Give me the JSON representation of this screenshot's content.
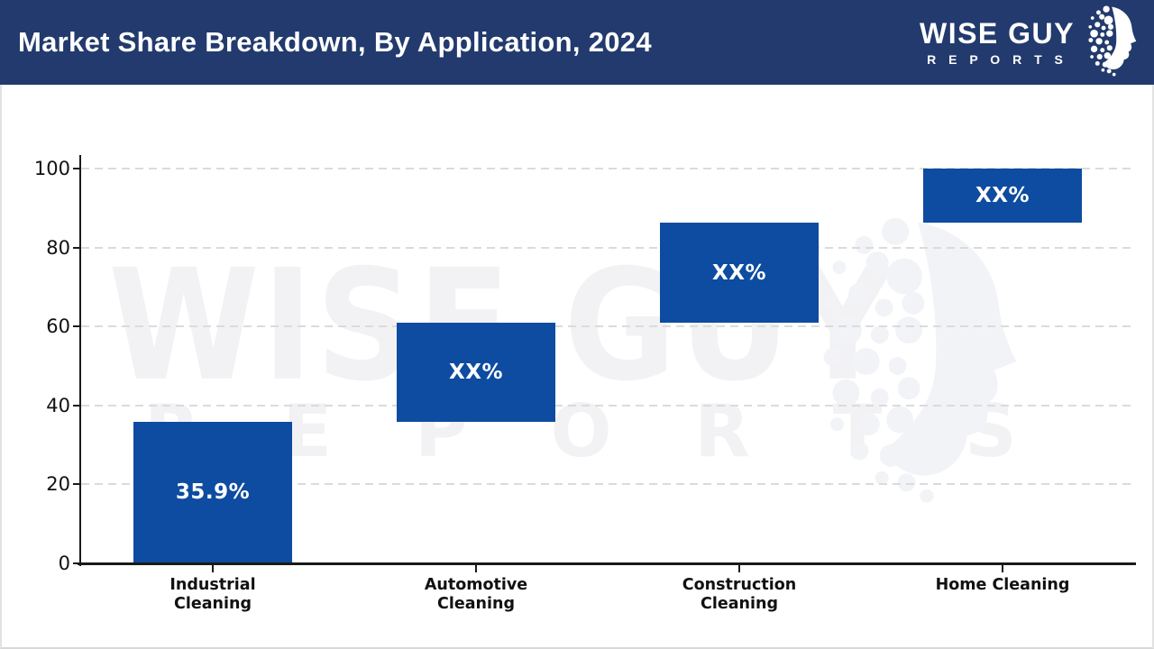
{
  "header": {
    "title": "Market Share Breakdown, By Application, 2024",
    "background_color": "#223A6D",
    "logo": {
      "line1": "WISE GUY",
      "line2": "R E P O R T S",
      "icon": "wiseguy-head-icon"
    }
  },
  "watermark": {
    "line1": "WISE GUY",
    "line2": "R E P O R T S",
    "icon": "wiseguy-head-icon",
    "color": "#F2F2F5"
  },
  "chart_data": {
    "type": "bar",
    "subtype": "waterfall",
    "title": "Market Share Breakdown, By Application, 2024",
    "categories": [
      "Industrial Cleaning",
      "Automotive Cleaning",
      "Construction Cleaning",
      "Home Cleaning"
    ],
    "category_lines": [
      [
        "Industrial",
        "Cleaning"
      ],
      [
        "Automotive",
        "Cleaning"
      ],
      [
        "Construction",
        "Cleaning"
      ],
      [
        "Home Cleaning"
      ]
    ],
    "segments": [
      {
        "category": "Industrial Cleaning",
        "start": 0,
        "end": 35.9,
        "label": "35.9%"
      },
      {
        "category": "Automotive Cleaning",
        "start": 35.9,
        "end": 60.9,
        "label": "XX%"
      },
      {
        "category": "Construction Cleaning",
        "start": 60.9,
        "end": 86.2,
        "label": "XX%"
      },
      {
        "category": "Home Cleaning",
        "start": 86.2,
        "end": 100,
        "label": "XX%"
      }
    ],
    "xlabel": "",
    "ylabel": "",
    "ylim": [
      0,
      100
    ],
    "yticks": [
      0,
      20,
      40,
      60,
      80,
      100
    ],
    "grid": "horizontal-dashed",
    "legend": "none",
    "bar_color": "#0D4CA0",
    "bar_label_color": "#FFFFFF",
    "axis_color": "#1A1A1A",
    "gridline_color": "#DBDBDB"
  }
}
